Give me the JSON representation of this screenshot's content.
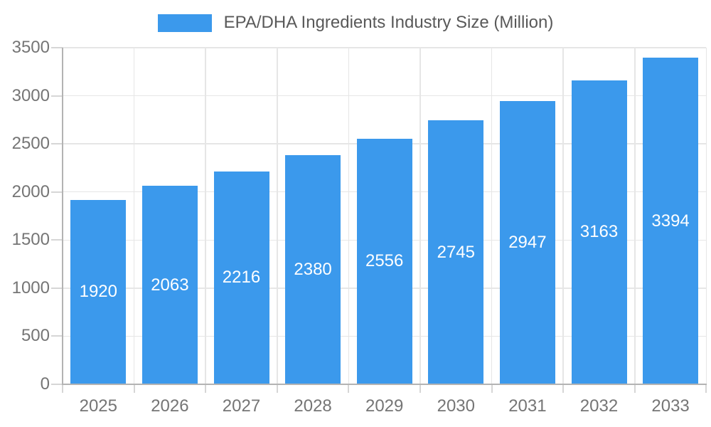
{
  "legend": {
    "label": "EPA/DHA Ingredients Industry Size (Million)"
  },
  "chart_data": {
    "type": "bar",
    "title": "EPA/DHA Ingredients Industry Size (Million)",
    "categories": [
      "2025",
      "2026",
      "2027",
      "2028",
      "2029",
      "2030",
      "2031",
      "2032",
      "2033"
    ],
    "values": [
      1920,
      2063,
      2216,
      2380,
      2556,
      2745,
      2947,
      3163,
      3394
    ],
    "xlabel": "",
    "ylabel": "",
    "ylim": [
      0,
      3500
    ],
    "yticks": [
      0,
      500,
      1000,
      1500,
      2000,
      2500,
      3000,
      3500
    ],
    "grid": true,
    "legend_position": "top-center",
    "bar_labels": "inside-center-white",
    "colors": {
      "bar": "#3B99EC",
      "bar_label": "#FFFFFF",
      "axis": "#B3B3B3",
      "grid": "#E6E6E6",
      "tick": "#D6D6D6",
      "axis_text": "#757575",
      "legend_text": "#595959",
      "background": "#FFFFFF"
    }
  }
}
